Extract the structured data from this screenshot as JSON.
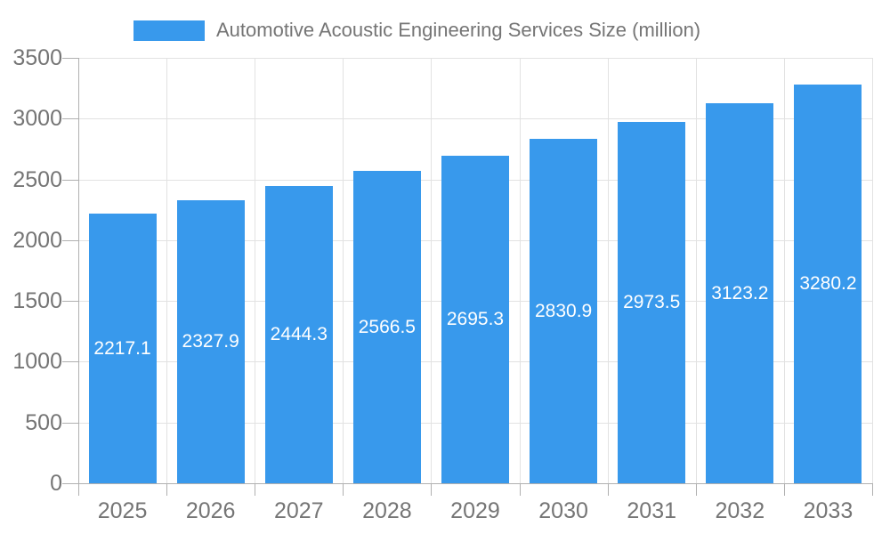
{
  "chart_data": {
    "type": "bar",
    "title": "Automotive Acoustic Engineering Services Size (million)",
    "categories": [
      "2025",
      "2026",
      "2027",
      "2028",
      "2029",
      "2030",
      "2031",
      "2032",
      "2033"
    ],
    "series": [
      {
        "name": "Automotive Acoustic Engineering Services Size (million)",
        "values": [
          2217.1,
          2327.9,
          2444.3,
          2566.5,
          2695.3,
          2830.9,
          2973.5,
          3123.2,
          3280.2
        ]
      }
    ],
    "xlabel": "",
    "ylabel": "",
    "ylim": [
      0,
      3500
    ],
    "yticks": [
      0,
      500,
      1000,
      1500,
      2000,
      2500,
      3000,
      3500
    ],
    "grid": true,
    "legend_position": "top",
    "value_labels": "inside-center",
    "colors": {
      "bar": "#3899EC",
      "bar_label": "#FFFFFF",
      "axis_text": "#757575",
      "grid_line": "#E2E2E2",
      "axis_line": "#B0B0B0",
      "background": "#FFFFFF"
    }
  }
}
